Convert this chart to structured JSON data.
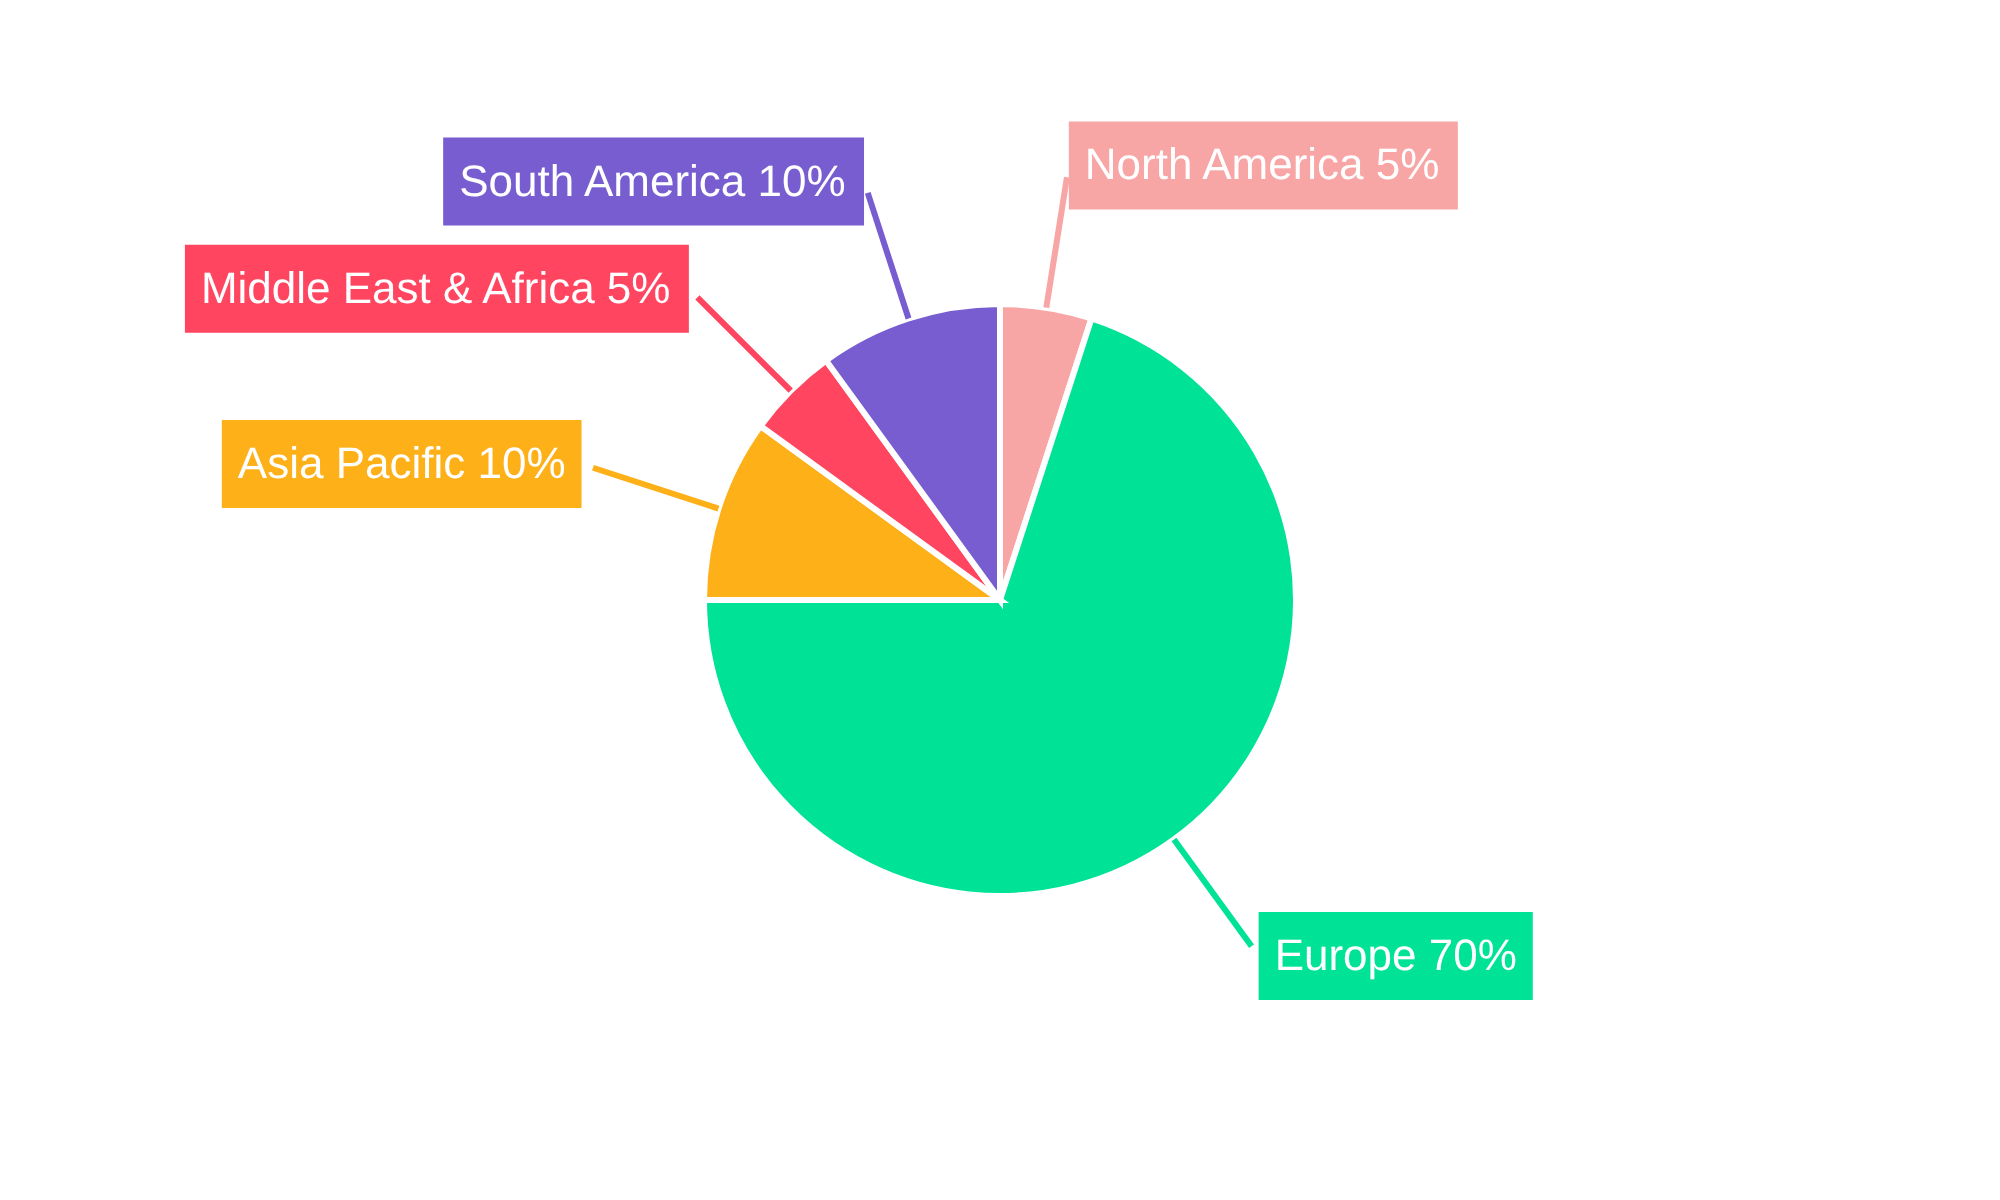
{
  "chart_data": {
    "type": "pie",
    "categories": [
      "North America",
      "Europe",
      "Asia Pacific",
      "Middle East & Africa",
      "South America"
    ],
    "values": [
      5,
      70,
      10,
      5,
      10
    ],
    "value_labels": [
      "5%",
      "70%",
      "10%",
      "5%",
      "10%"
    ],
    "colors": [
      "#f8a5a5",
      "#00e396",
      "#feb019",
      "#ff4560",
      "#775dd0"
    ]
  }
}
